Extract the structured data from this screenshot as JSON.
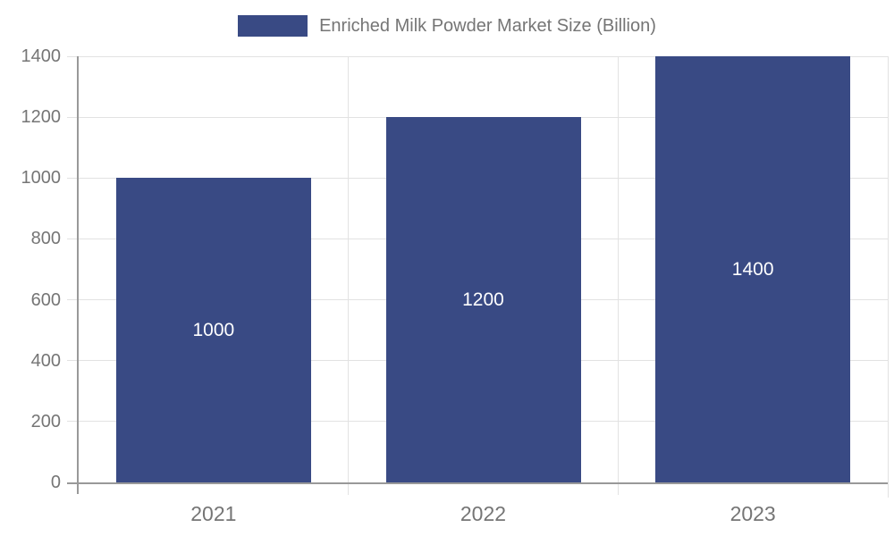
{
  "legend": {
    "label": "Enriched Milk Powder Market Size (Billion)"
  },
  "chart_data": {
    "type": "bar",
    "title": "",
    "categories": [
      "2021",
      "2022",
      "2023"
    ],
    "series": [
      {
        "name": "Enriched Milk Powder Market Size (Billion)",
        "values": [
          1000,
          1200,
          1400
        ],
        "bar_labels": [
          "1000",
          "1200",
          "1400"
        ]
      }
    ],
    "xlabel": "",
    "ylabel": "",
    "ylim": [
      0,
      1400
    ],
    "yticks": [
      0,
      200,
      400,
      600,
      800,
      1000,
      1200,
      1400
    ],
    "grid": true,
    "legend_position": "top-center",
    "colors": {
      "bar": "#394A84",
      "grid": "#E2E2E2",
      "axis": "#999999",
      "tick_label": "#757575",
      "bar_label": "#FFFFFF"
    }
  }
}
